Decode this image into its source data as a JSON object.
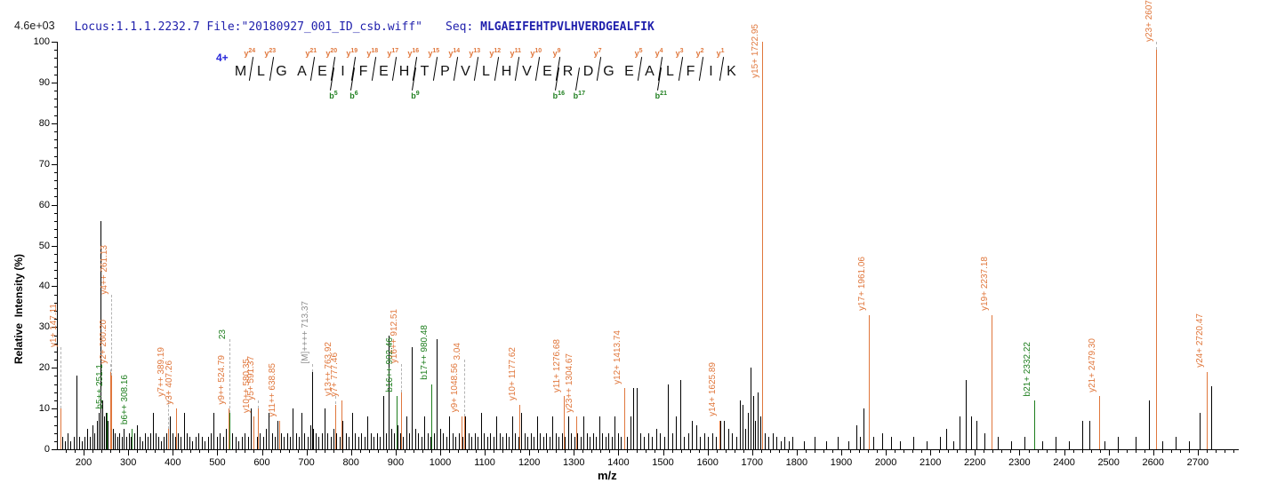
{
  "header": {
    "locus_text": "Locus:1.1.1.2232.7 File:\"20180927_001_ID_csb.wiff\"",
    "seq_label": "Seq: ",
    "sequence": "MLGAEIFEHTPVLHVERDGEALFIK"
  },
  "intensity_scale": "4.6e+03",
  "colors": {
    "y_ion": "#E0773C",
    "b_ion": "#1E7E1E",
    "precursor_label": "#8C8C8C",
    "header_blue": "#2121AD",
    "charge_blue": "#2626D9",
    "leader_dash": "#b3b3b3",
    "peak_black": "#000000"
  },
  "sequence_map": {
    "charge_label": "4+",
    "residues": "MLGAEIFEHTPVLHVERDGEALFIK",
    "cleavages": [
      {
        "after": 1,
        "y": 24,
        "b": null
      },
      {
        "after": 2,
        "y": 23,
        "b": null
      },
      {
        "after": 3,
        "y": null,
        "b": null
      },
      {
        "after": 4,
        "y": 21,
        "b": null
      },
      {
        "after": 5,
        "y": 20,
        "b": 5
      },
      {
        "after": 6,
        "y": 19,
        "b": 6
      },
      {
        "after": 7,
        "y": 18,
        "b": null
      },
      {
        "after": 8,
        "y": 17,
        "b": null
      },
      {
        "after": 9,
        "y": 16,
        "b": 9
      },
      {
        "after": 10,
        "y": 15,
        "b": null
      },
      {
        "after": 11,
        "y": 14,
        "b": null
      },
      {
        "after": 12,
        "y": 13,
        "b": null
      },
      {
        "after": 13,
        "y": 12,
        "b": null
      },
      {
        "after": 14,
        "y": 11,
        "b": null
      },
      {
        "after": 15,
        "y": 10,
        "b": null
      },
      {
        "after": 16,
        "y": 9,
        "b": 16
      },
      {
        "after": 17,
        "y": null,
        "b": 17
      },
      {
        "after": 18,
        "y": 7,
        "b": null
      },
      {
        "after": 19,
        "y": null,
        "b": null
      },
      {
        "after": 20,
        "y": 5,
        "b": null
      },
      {
        "after": 21,
        "y": 4,
        "b": 21
      },
      {
        "after": 22,
        "y": 3,
        "b": null
      },
      {
        "after": 23,
        "y": 2,
        "b": null
      },
      {
        "after": 24,
        "y": 1,
        "b": null
      }
    ]
  },
  "chart_data": {
    "type": "bar",
    "subtype": "ms2-centroid-spectrum",
    "title": "",
    "xlabel": "m/z",
    "ylabel": "Relative  Intensity (%)",
    "peptide": "MLGAEIFEHTPVLHVERDGEALFIK",
    "precursor_charge": "4+",
    "base_peak_intensity": "4.6e+03",
    "x_range": [
      140,
      2790
    ],
    "y_range": [
      0,
      100
    ],
    "x_major_tick": 100,
    "x_minor_tick": 20,
    "y_major_tick": 10,
    "y_minor_tick": 2,
    "x_tick_labels": [
      200,
      300,
      400,
      500,
      600,
      700,
      800,
      900,
      1000,
      1100,
      1200,
      1300,
      1400,
      1500,
      1600,
      1700,
      1800,
      1900,
      2000,
      2100,
      2200,
      2300,
      2400,
      2500,
      2600,
      2700
    ],
    "y_tick_labels": [
      0,
      10,
      20,
      30,
      40,
      50,
      60,
      70,
      80,
      90,
      100
    ],
    "grid": false,
    "legend": "none",
    "annotated_peaks": [
      {
        "ion": "y1+",
        "mz": 147.11,
        "pct": 10,
        "label": "y1+ 147.11",
        "series": "y",
        "label_from": 25
      },
      {
        "ion": "b5++",
        "mz": 251.1,
        "pct": 9,
        "label": "b5++ 251.1",
        "series": "b",
        "label_from": 10
      },
      {
        "ion": "y2+",
        "mz": 260.2,
        "pct": 19,
        "label": "y2+ 260.20",
        "series": "y",
        "label_from": 21
      },
      {
        "ion": "y4++",
        "mz": 261.13,
        "pct": 18,
        "label": "y4++ 261.13",
        "series": "y",
        "label_from": 38
      },
      {
        "ion": "b6++",
        "mz": 308.16,
        "pct": 5,
        "label": "b6++ 308.16",
        "series": "b",
        "label_from": 6
      },
      {
        "ion": "y7++",
        "mz": 389.19,
        "pct": 5,
        "label": "y7++ 389.19",
        "series": "y",
        "label_from": 13
      },
      {
        "ion": "y3+",
        "mz": 407.26,
        "pct": 10,
        "label": "y3+ 407.26",
        "series": "y",
        "label_from": 11
      },
      {
        "ion": "y9++",
        "mz": 524.79,
        "pct": 10,
        "label": "y9++ 524.79",
        "series": "y",
        "label_from": 11
      },
      {
        "ion": "b-partial",
        "mz": 527.5,
        "pct": 9,
        "label": "23",
        "series": "b",
        "label_from": 27
      },
      {
        "ion": "y10++",
        "mz": 580.35,
        "pct": 8,
        "label": "y10++ 580.35",
        "series": "y",
        "label_from": 9
      },
      {
        "ion": "y5+",
        "mz": 591.37,
        "pct": 10,
        "label": "y5+ 591.37",
        "series": "y",
        "label_from": 12
      },
      {
        "ion": "y11++",
        "mz": 638.85,
        "pct": 7,
        "label": "y11++ 638.85",
        "series": "y",
        "label_from": 8
      },
      {
        "ion": "[M]++++",
        "mz": 713.37,
        "pct": 19,
        "label": "[M]++++ 713.37",
        "series": "precursor",
        "label_from": 21
      },
      {
        "ion": "y13++",
        "mz": 763.92,
        "pct": 11,
        "label": "y13++ 763.92",
        "series": "y",
        "label_from": 13
      },
      {
        "ion": "y7+",
        "mz": 777.46,
        "pct": 12,
        "label": "y7+ 777.46",
        "series": "y",
        "label_from": 13
      },
      {
        "ion": "b16++",
        "mz": 902.46,
        "pct": 13,
        "label": "b16++ 902.46",
        "series": "b",
        "label_from": 14
      },
      {
        "ion": "y16++",
        "mz": 912.51,
        "pct": 14,
        "label": "y16++ 912.51",
        "series": "y",
        "label_from": 21
      },
      {
        "ion": "b17++",
        "mz": 980.48,
        "pct": 16,
        "label": "b17++ 980.48",
        "series": "b",
        "label_from": 17
      },
      {
        "ion": "y9+",
        "mz": 1048.56,
        "pct": 8,
        "label": "y9+ 1048.56",
        "series": "y",
        "label_from": 9
      },
      {
        "ion": "overlap",
        "mz": 1053.5,
        "pct": 8,
        "label": "3.04",
        "series": "y",
        "label_from": 22
      },
      {
        "ion": "y10+",
        "mz": 1177.62,
        "pct": 11,
        "label": "y10+ 1177.62",
        "series": "y",
        "label_from": 12
      },
      {
        "ion": "y11+",
        "mz": 1276.68,
        "pct": 13,
        "label": "y11+ 1276.68",
        "series": "y",
        "label_from": 14
      },
      {
        "ion": "y23++",
        "mz": 1304.67,
        "pct": 8,
        "label": "y23++ 1304.67",
        "series": "y",
        "label_from": 9
      },
      {
        "ion": "y12+",
        "mz": 1413.74,
        "pct": 15,
        "label": "y12+ 1413.74",
        "series": "y",
        "label_from": 16
      },
      {
        "ion": "y14+",
        "mz": 1625.89,
        "pct": 7,
        "label": "y14+ 1625.89",
        "series": "y",
        "label_from": 8
      },
      {
        "ion": "y15+",
        "mz": 1722.95,
        "pct": 100,
        "label": "y15+ 1722.95",
        "series": "y",
        "label_from": 91
      },
      {
        "ion": "y17+",
        "mz": 1961.06,
        "pct": 33,
        "label": "y17+ 1961.06",
        "series": "y",
        "label_from": 34
      },
      {
        "ion": "y19+",
        "mz": 2237.18,
        "pct": 33,
        "label": "y19+ 2237.18",
        "series": "y",
        "label_from": 34
      },
      {
        "ion": "b21+",
        "mz": 2332.22,
        "pct": 12,
        "label": "b21+ 2332.22",
        "series": "b",
        "label_from": 13
      },
      {
        "ion": "y21+",
        "mz": 2479.3,
        "pct": 13,
        "label": "y21+ 2479.30",
        "series": "y",
        "label_from": 14
      },
      {
        "ion": "y23+",
        "mz": 2607,
        "pct": 98,
        "label": "y23+ 2607",
        "series": "y",
        "label_from": 100
      },
      {
        "ion": "y24+",
        "mz": 2720.47,
        "pct": 19,
        "label": "y24+ 2720.47",
        "series": "y",
        "label_from": 20
      }
    ],
    "background_peaks": [
      [
        152,
        3
      ],
      [
        158,
        2
      ],
      [
        164,
        4
      ],
      [
        170,
        2
      ],
      [
        178,
        3
      ],
      [
        183,
        18
      ],
      [
        189,
        3
      ],
      [
        195,
        2
      ],
      [
        201,
        3
      ],
      [
        207,
        5
      ],
      [
        213,
        3
      ],
      [
        219,
        6
      ],
      [
        224,
        4
      ],
      [
        229,
        7
      ],
      [
        233,
        9
      ],
      [
        237,
        56
      ],
      [
        241,
        12
      ],
      [
        245,
        8
      ],
      [
        249,
        9
      ],
      [
        253,
        7
      ],
      [
        262,
        6
      ],
      [
        266,
        5
      ],
      [
        270,
        4
      ],
      [
        275,
        3
      ],
      [
        280,
        4
      ],
      [
        285,
        3
      ],
      [
        290,
        5
      ],
      [
        295,
        3
      ],
      [
        301,
        4
      ],
      [
        306,
        3
      ],
      [
        313,
        4
      ],
      [
        319,
        6
      ],
      [
        325,
        3
      ],
      [
        331,
        2
      ],
      [
        337,
        4
      ],
      [
        343,
        3
      ],
      [
        350,
        4
      ],
      [
        356,
        9
      ],
      [
        362,
        4
      ],
      [
        368,
        3
      ],
      [
        374,
        2
      ],
      [
        380,
        3
      ],
      [
        386,
        4
      ],
      [
        393,
        8
      ],
      [
        399,
        4
      ],
      [
        405,
        3
      ],
      [
        411,
        4
      ],
      [
        418,
        3
      ],
      [
        425,
        9
      ],
      [
        431,
        4
      ],
      [
        437,
        3
      ],
      [
        444,
        2
      ],
      [
        451,
        3
      ],
      [
        458,
        4
      ],
      [
        465,
        3
      ],
      [
        472,
        2
      ],
      [
        479,
        3
      ],
      [
        486,
        4
      ],
      [
        492,
        9
      ],
      [
        499,
        3
      ],
      [
        506,
        4
      ],
      [
        513,
        3
      ],
      [
        520,
        5
      ],
      [
        528,
        4
      ],
      [
        533,
        4
      ],
      [
        540,
        3
      ],
      [
        547,
        2
      ],
      [
        554,
        3
      ],
      [
        561,
        4
      ],
      [
        568,
        3
      ],
      [
        574,
        10
      ],
      [
        581,
        4
      ],
      [
        588,
        3
      ],
      [
        595,
        4
      ],
      [
        602,
        3
      ],
      [
        609,
        5
      ],
      [
        615,
        9
      ],
      [
        622,
        4
      ],
      [
        629,
        3
      ],
      [
        635,
        7
      ],
      [
        642,
        4
      ],
      [
        649,
        3
      ],
      [
        656,
        4
      ],
      [
        662,
        3
      ],
      [
        669,
        10
      ],
      [
        676,
        4
      ],
      [
        682,
        3
      ],
      [
        689,
        9
      ],
      [
        695,
        4
      ],
      [
        702,
        3
      ],
      [
        708,
        6
      ],
      [
        714,
        5
      ],
      [
        720,
        4
      ],
      [
        727,
        3
      ],
      [
        734,
        4
      ],
      [
        740,
        10
      ],
      [
        747,
        4
      ],
      [
        754,
        3
      ],
      [
        760,
        5
      ],
      [
        767,
        4
      ],
      [
        774,
        3
      ],
      [
        781,
        7
      ],
      [
        788,
        4
      ],
      [
        795,
        3
      ],
      [
        802,
        9
      ],
      [
        809,
        4
      ],
      [
        816,
        3
      ],
      [
        823,
        4
      ],
      [
        830,
        3
      ],
      [
        837,
        8
      ],
      [
        844,
        4
      ],
      [
        851,
        3
      ],
      [
        858,
        4
      ],
      [
        865,
        3
      ],
      [
        872,
        13
      ],
      [
        879,
        4
      ],
      [
        884,
        28
      ],
      [
        891,
        5
      ],
      [
        897,
        4
      ],
      [
        904,
        6
      ],
      [
        910,
        4
      ],
      [
        917,
        3
      ],
      [
        924,
        8
      ],
      [
        931,
        4
      ],
      [
        937,
        25
      ],
      [
        944,
        5
      ],
      [
        951,
        4
      ],
      [
        958,
        3
      ],
      [
        965,
        8
      ],
      [
        972,
        4
      ],
      [
        979,
        3
      ],
      [
        986,
        4
      ],
      [
        992,
        27
      ],
      [
        999,
        5
      ],
      [
        1006,
        4
      ],
      [
        1013,
        3
      ],
      [
        1020,
        8
      ],
      [
        1027,
        4
      ],
      [
        1034,
        3
      ],
      [
        1041,
        4
      ],
      [
        1049,
        3
      ],
      [
        1056,
        8
      ],
      [
        1063,
        4
      ],
      [
        1070,
        3
      ],
      [
        1077,
        4
      ],
      [
        1084,
        3
      ],
      [
        1091,
        9
      ],
      [
        1098,
        4
      ],
      [
        1105,
        3
      ],
      [
        1112,
        4
      ],
      [
        1119,
        3
      ],
      [
        1126,
        8
      ],
      [
        1133,
        4
      ],
      [
        1140,
        3
      ],
      [
        1147,
        4
      ],
      [
        1154,
        3
      ],
      [
        1161,
        8
      ],
      [
        1168,
        4
      ],
      [
        1175,
        3
      ],
      [
        1182,
        9
      ],
      [
        1189,
        4
      ],
      [
        1196,
        3
      ],
      [
        1203,
        4
      ],
      [
        1210,
        3
      ],
      [
        1217,
        8
      ],
      [
        1224,
        4
      ],
      [
        1231,
        3
      ],
      [
        1238,
        4
      ],
      [
        1245,
        3
      ],
      [
        1252,
        8
      ],
      [
        1259,
        4
      ],
      [
        1266,
        3
      ],
      [
        1273,
        4
      ],
      [
        1280,
        3
      ],
      [
        1287,
        8
      ],
      [
        1294,
        4
      ],
      [
        1301,
        3
      ],
      [
        1308,
        4
      ],
      [
        1315,
        3
      ],
      [
        1322,
        8
      ],
      [
        1329,
        4
      ],
      [
        1336,
        3
      ],
      [
        1343,
        4
      ],
      [
        1350,
        3
      ],
      [
        1357,
        8
      ],
      [
        1364,
        4
      ],
      [
        1371,
        3
      ],
      [
        1378,
        4
      ],
      [
        1385,
        3
      ],
      [
        1392,
        8
      ],
      [
        1399,
        4
      ],
      [
        1406,
        3
      ],
      [
        1419,
        3
      ],
      [
        1426,
        8
      ],
      [
        1433,
        15
      ],
      [
        1441,
        15
      ],
      [
        1448,
        4
      ],
      [
        1457,
        3
      ],
      [
        1466,
        4
      ],
      [
        1475,
        3
      ],
      [
        1484,
        5
      ],
      [
        1493,
        4
      ],
      [
        1502,
        3
      ],
      [
        1511,
        16
      ],
      [
        1520,
        4
      ],
      [
        1529,
        8
      ],
      [
        1538,
        17
      ],
      [
        1547,
        3
      ],
      [
        1556,
        4
      ],
      [
        1565,
        7
      ],
      [
        1574,
        6
      ],
      [
        1583,
        3
      ],
      [
        1592,
        4
      ],
      [
        1601,
        3
      ],
      [
        1610,
        4
      ],
      [
        1619,
        3
      ],
      [
        1628,
        7
      ],
      [
        1637,
        7
      ],
      [
        1646,
        5
      ],
      [
        1655,
        4
      ],
      [
        1664,
        3
      ],
      [
        1673,
        12
      ],
      [
        1679,
        11
      ],
      [
        1685,
        5
      ],
      [
        1691,
        9
      ],
      [
        1697,
        20
      ],
      [
        1702,
        13
      ],
      [
        1707,
        7
      ],
      [
        1713,
        14
      ],
      [
        1719,
        8
      ],
      [
        1728,
        4
      ],
      [
        1737,
        3
      ],
      [
        1746,
        4
      ],
      [
        1755,
        3
      ],
      [
        1764,
        2
      ],
      [
        1773,
        3
      ],
      [
        1782,
        2
      ],
      [
        1791,
        3
      ],
      [
        1816,
        2
      ],
      [
        1841,
        3
      ],
      [
        1866,
        2
      ],
      [
        1891,
        3
      ],
      [
        1916,
        2
      ],
      [
        1934,
        6
      ],
      [
        1941,
        3
      ],
      [
        1950,
        10
      ],
      [
        1971,
        3
      ],
      [
        1991,
        4
      ],
      [
        2011,
        3
      ],
      [
        2031,
        2
      ],
      [
        2061,
        3
      ],
      [
        2091,
        2
      ],
      [
        2121,
        3
      ],
      [
        2136,
        5
      ],
      [
        2151,
        2
      ],
      [
        2165,
        8
      ],
      [
        2180,
        17
      ],
      [
        2192,
        8
      ],
      [
        2203,
        7
      ],
      [
        2221,
        4
      ],
      [
        2251,
        3
      ],
      [
        2281,
        2
      ],
      [
        2311,
        3
      ],
      [
        2351,
        2
      ],
      [
        2381,
        3
      ],
      [
        2411,
        2
      ],
      [
        2440,
        7
      ],
      [
        2456,
        7
      ],
      [
        2491,
        2
      ],
      [
        2521,
        3
      ],
      [
        2561,
        3
      ],
      [
        2590,
        12
      ],
      [
        2621,
        2
      ],
      [
        2651,
        3
      ],
      [
        2681,
        2
      ],
      [
        2705,
        9
      ],
      [
        2731,
        15.5
      ]
    ]
  }
}
